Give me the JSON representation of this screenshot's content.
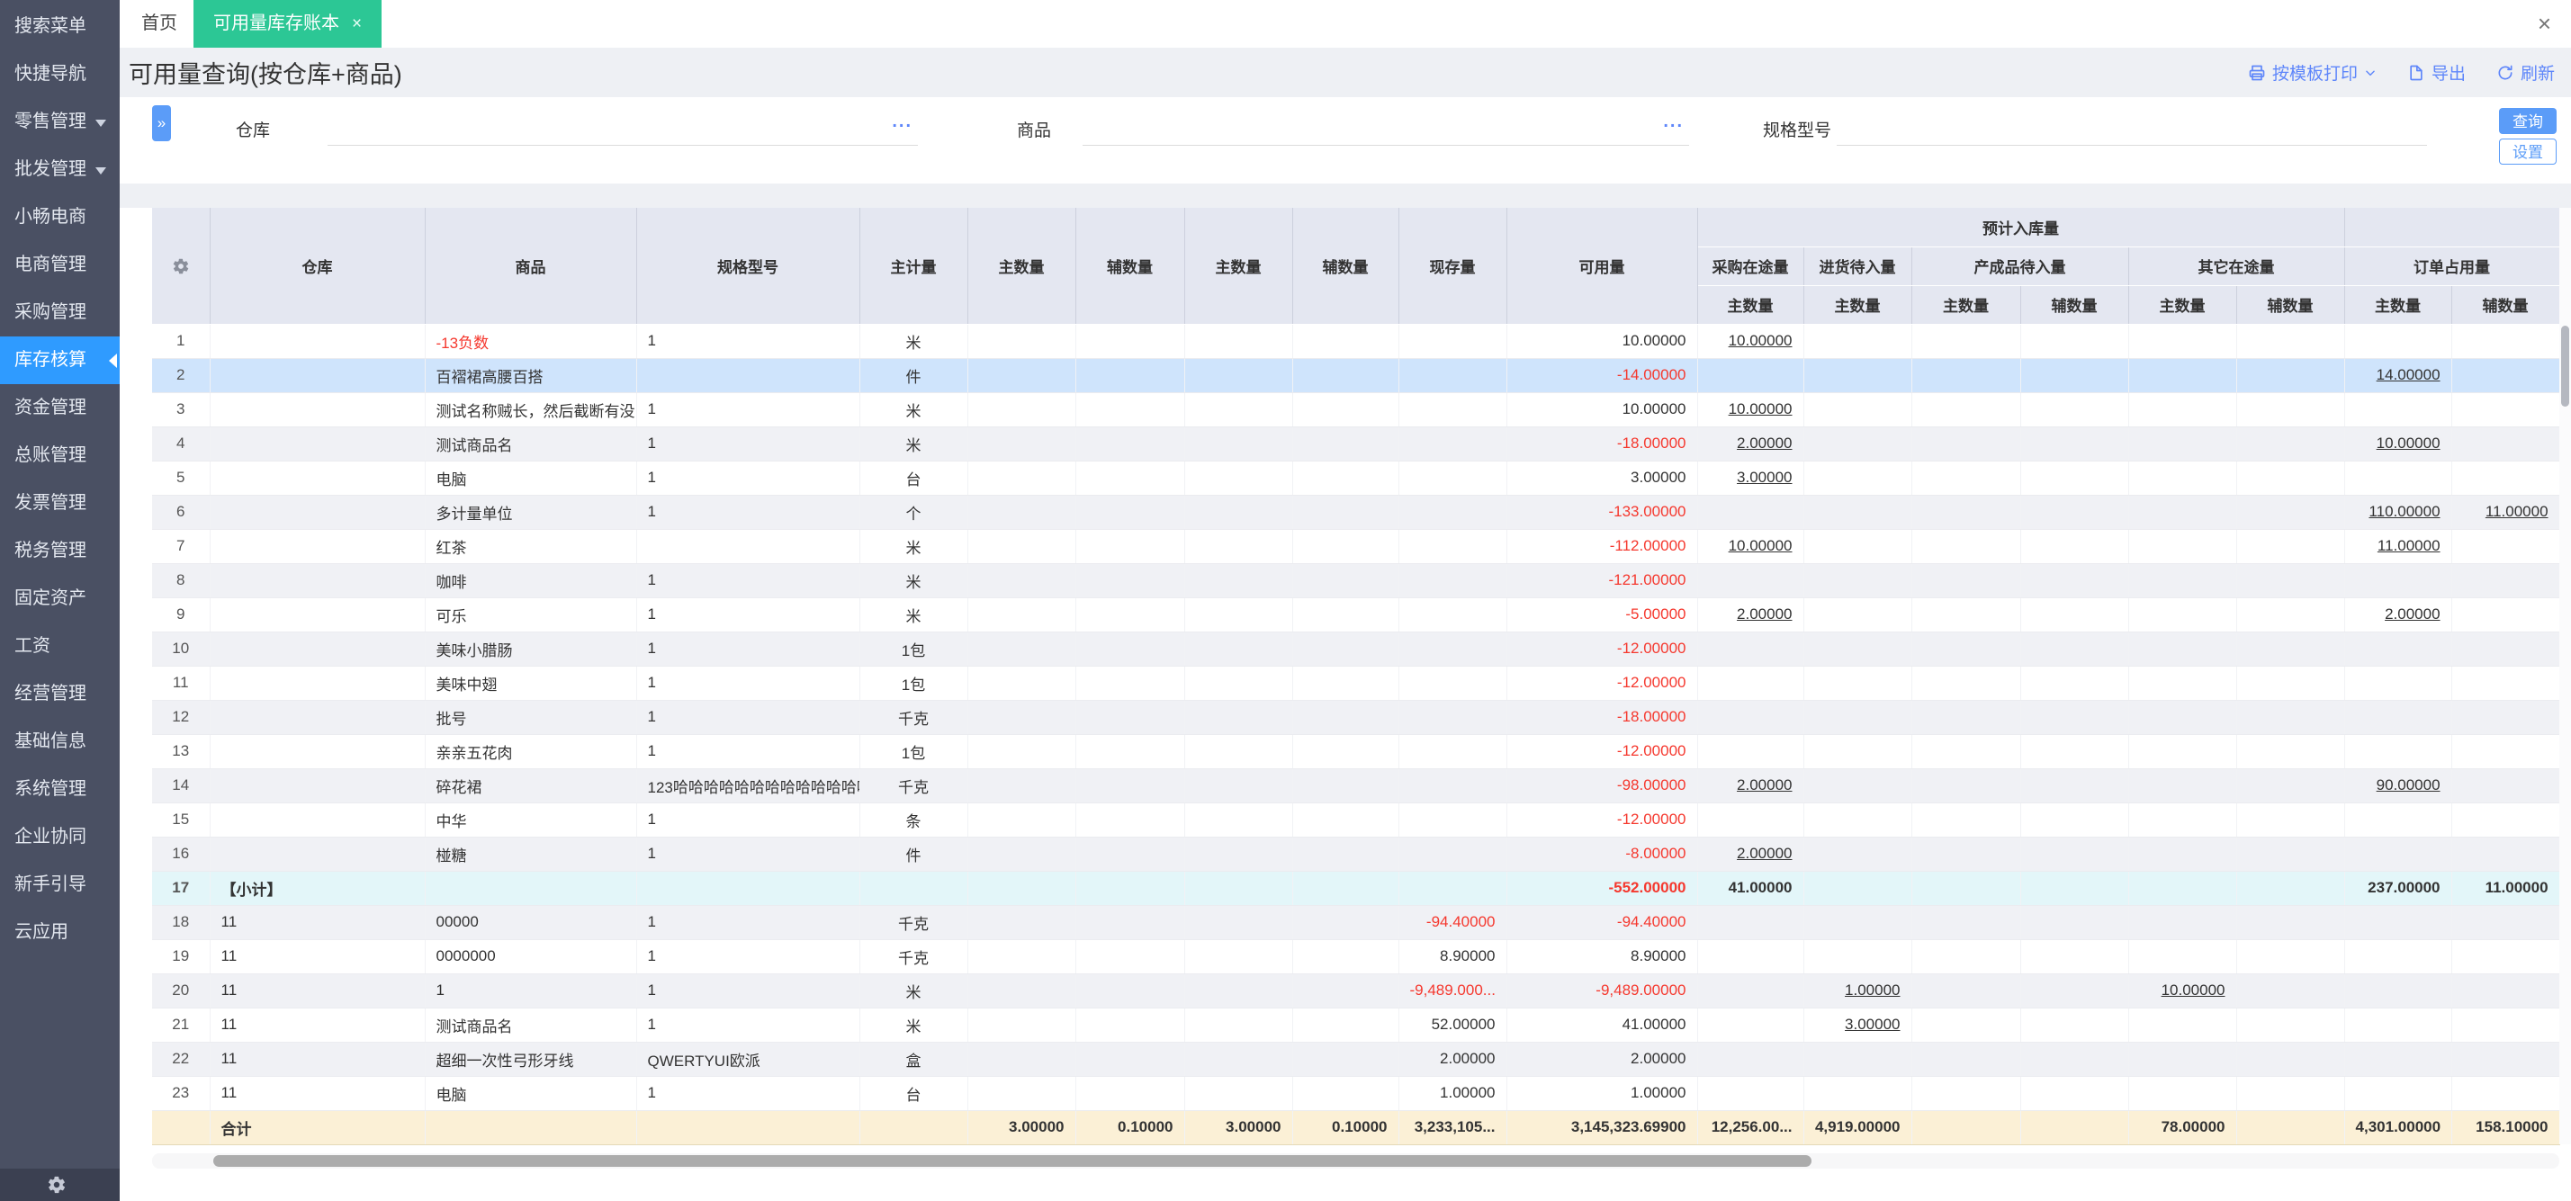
{
  "sidebar": {
    "items": [
      {
        "label": "搜索菜单"
      },
      {
        "label": "快捷导航"
      },
      {
        "label": "零售管理",
        "arrow": true
      },
      {
        "label": "批发管理",
        "arrow": true
      },
      {
        "label": "小畅电商"
      },
      {
        "label": "电商管理"
      },
      {
        "label": "采购管理"
      },
      {
        "label": "库存核算",
        "active": true
      },
      {
        "label": "资金管理"
      },
      {
        "label": "总账管理"
      },
      {
        "label": "发票管理"
      },
      {
        "label": "税务管理"
      },
      {
        "label": "固定资产"
      },
      {
        "label": "工资"
      },
      {
        "label": "经营管理"
      },
      {
        "label": "基础信息"
      },
      {
        "label": "系统管理"
      },
      {
        "label": "企业协同"
      },
      {
        "label": "新手引导"
      },
      {
        "label": "云应用"
      }
    ]
  },
  "tabs": {
    "home": "首页",
    "active": "可用量库存账本",
    "close": "×",
    "bar_close": "×"
  },
  "page": {
    "title": "可用量查询(按仓库+商品)"
  },
  "toolbar": {
    "print": "按模板打印",
    "export": "导出",
    "refresh": "刷新"
  },
  "filters": {
    "collapse_glyph": "»",
    "fields": [
      {
        "label": "仓库",
        "ellipsis": "...",
        "value": ""
      },
      {
        "label": "商品",
        "ellipsis": "...",
        "value": ""
      },
      {
        "label": "规格型号",
        "ellipsis": "",
        "value": ""
      }
    ],
    "query": "查询",
    "settings": "设置"
  },
  "table": {
    "header": {
      "cols": [
        "仓库",
        "商品",
        "规格型号",
        "主计量",
        "主数量",
        "辅数量",
        "主数量",
        "辅数量",
        "现存量",
        "可用量"
      ],
      "expected_group": "预计入库量",
      "groups": [
        {
          "label": "采购在途量",
          "subs": [
            "主数量"
          ]
        },
        {
          "label": "进货待入量",
          "subs": [
            "主数量"
          ]
        },
        {
          "label": "产成品待入量",
          "subs": [
            "主数量",
            "辅数量"
          ]
        },
        {
          "label": "其它在途量",
          "subs": [
            "主数量",
            "辅数量"
          ]
        },
        {
          "label": "订单占用量",
          "subs": [
            "主数量",
            "辅数量"
          ]
        }
      ]
    },
    "rows": [
      {
        "n": "1",
        "c": [
          "",
          "-13负数",
          "1",
          "米",
          "",
          "",
          "",
          "",
          "",
          "10.00000",
          "10.00000",
          "",
          "",
          "",
          "",
          "",
          "",
          ""
        ]
      },
      {
        "n": "2",
        "type": "selected",
        "c": [
          "",
          "百褶裙高腰百搭",
          "",
          "件",
          "",
          "",
          "",
          "",
          "",
          "-14.00000",
          "",
          "",
          "",
          "",
          "",
          "",
          "14.00000",
          ""
        ]
      },
      {
        "n": "3",
        "c": [
          "",
          "测试名称贼长，然后截断有没...",
          "1",
          "米",
          "",
          "",
          "",
          "",
          "",
          "10.00000",
          "10.00000",
          "",
          "",
          "",
          "",
          "",
          "",
          ""
        ]
      },
      {
        "n": "4",
        "c": [
          "",
          "测试商品名",
          "1",
          "米",
          "",
          "",
          "",
          "",
          "",
          "-18.00000",
          "2.00000",
          "",
          "",
          "",
          "",
          "",
          "10.00000",
          ""
        ]
      },
      {
        "n": "5",
        "c": [
          "",
          "电脑",
          "1",
          "台",
          "",
          "",
          "",
          "",
          "",
          "3.00000",
          "3.00000",
          "",
          "",
          "",
          "",
          "",
          "",
          ""
        ]
      },
      {
        "n": "6",
        "c": [
          "",
          "多计量单位",
          "1",
          "个",
          "",
          "",
          "",
          "",
          "",
          "-133.00000",
          "",
          "",
          "",
          "",
          "",
          "",
          "110.00000",
          "11.00000"
        ]
      },
      {
        "n": "7",
        "c": [
          "",
          "红茶",
          "",
          "米",
          "",
          "",
          "",
          "",
          "",
          "-112.00000",
          "10.00000",
          "",
          "",
          "",
          "",
          "",
          "11.00000",
          ""
        ]
      },
      {
        "n": "8",
        "c": [
          "",
          "咖啡",
          "1",
          "米",
          "",
          "",
          "",
          "",
          "",
          "-121.00000",
          "",
          "",
          "",
          "",
          "",
          "",
          "",
          ""
        ]
      },
      {
        "n": "9",
        "c": [
          "",
          "可乐",
          "1",
          "米",
          "",
          "",
          "",
          "",
          "",
          "-5.00000",
          "2.00000",
          "",
          "",
          "",
          "",
          "",
          "2.00000",
          ""
        ]
      },
      {
        "n": "10",
        "c": [
          "",
          "美味小腊肠",
          "1",
          "1包",
          "",
          "",
          "",
          "",
          "",
          "-12.00000",
          "",
          "",
          "",
          "",
          "",
          "",
          "",
          ""
        ]
      },
      {
        "n": "11",
        "c": [
          "",
          "美味中翅",
          "1",
          "1包",
          "",
          "",
          "",
          "",
          "",
          "-12.00000",
          "",
          "",
          "",
          "",
          "",
          "",
          "",
          ""
        ]
      },
      {
        "n": "12",
        "c": [
          "",
          "批号",
          "1",
          "千克",
          "",
          "",
          "",
          "",
          "",
          "-18.00000",
          "",
          "",
          "",
          "",
          "",
          "",
          "",
          ""
        ]
      },
      {
        "n": "13",
        "c": [
          "",
          "亲亲五花肉",
          "1",
          "1包",
          "",
          "",
          "",
          "",
          "",
          "-12.00000",
          "",
          "",
          "",
          "",
          "",
          "",
          "",
          ""
        ]
      },
      {
        "n": "14",
        "c": [
          "",
          "碎花裙",
          "123哈哈哈哈哈哈哈哈哈哈哈哈哈...",
          "千克",
          "",
          "",
          "",
          "",
          "",
          "-98.00000",
          "2.00000",
          "",
          "",
          "",
          "",
          "",
          "90.00000",
          ""
        ]
      },
      {
        "n": "15",
        "c": [
          "",
          "中华",
          "1",
          "条",
          "",
          "",
          "",
          "",
          "",
          "-12.00000",
          "",
          "",
          "",
          "",
          "",
          "",
          "",
          ""
        ]
      },
      {
        "n": "16",
        "c": [
          "",
          "椪糖",
          "1",
          "件",
          "",
          "",
          "",
          "",
          "",
          "-8.00000",
          "2.00000",
          "",
          "",
          "",
          "",
          "",
          "",
          ""
        ]
      },
      {
        "n": "17",
        "type": "subtotal",
        "c": [
          "【小计】",
          "",
          "",
          "",
          "",
          "",
          "",
          "",
          "",
          "-552.00000",
          "41.00000",
          "",
          "",
          "",
          "",
          "",
          "237.00000",
          "11.00000"
        ]
      },
      {
        "n": "18",
        "c": [
          "11",
          "00000",
          "1",
          "千克",
          "",
          "",
          "",
          "",
          "-94.40000",
          "-94.40000",
          "",
          "",
          "",
          "",
          "",
          "",
          "",
          ""
        ]
      },
      {
        "n": "19",
        "c": [
          "11",
          "0000000",
          "1",
          "千克",
          "",
          "",
          "",
          "",
          "8.90000",
          "8.90000",
          "",
          "",
          "",
          "",
          "",
          "",
          "",
          ""
        ]
      },
      {
        "n": "20",
        "c": [
          "11",
          "1",
          "1",
          "米",
          "",
          "",
          "",
          "",
          "-9,489.000...",
          "-9,489.00000",
          "",
          "1.00000",
          "",
          "",
          "10.00000",
          "",
          "",
          ""
        ]
      },
      {
        "n": "21",
        "c": [
          "11",
          "测试商品名",
          "1",
          "米",
          "",
          "",
          "",
          "",
          "52.00000",
          "41.00000",
          "",
          "3.00000",
          "",
          "",
          "",
          "",
          "",
          ""
        ]
      },
      {
        "n": "22",
        "c": [
          "11",
          "超细一次性弓形牙线",
          "QWERTYUI欧派",
          "盒",
          "",
          "",
          "",
          "",
          "2.00000",
          "2.00000",
          "",
          "",
          "",
          "",
          "",
          "",
          "",
          ""
        ]
      },
      {
        "n": "23",
        "c": [
          "11",
          "电脑",
          "1",
          "台",
          "",
          "",
          "",
          "",
          "1.00000",
          "1.00000",
          "",
          "",
          "",
          "",
          "",
          "",
          "",
          ""
        ]
      },
      {
        "n": "",
        "type": "total",
        "c": [
          "合计",
          "",
          "",
          "",
          "3.00000",
          "0.10000",
          "3.00000",
          "0.10000",
          "3,233,105...",
          "3,145,323.69900",
          "12,256.00...",
          "4,919.00000",
          "",
          "",
          "78.00000",
          "",
          "4,301.00000",
          "158.10000"
        ]
      }
    ]
  }
}
